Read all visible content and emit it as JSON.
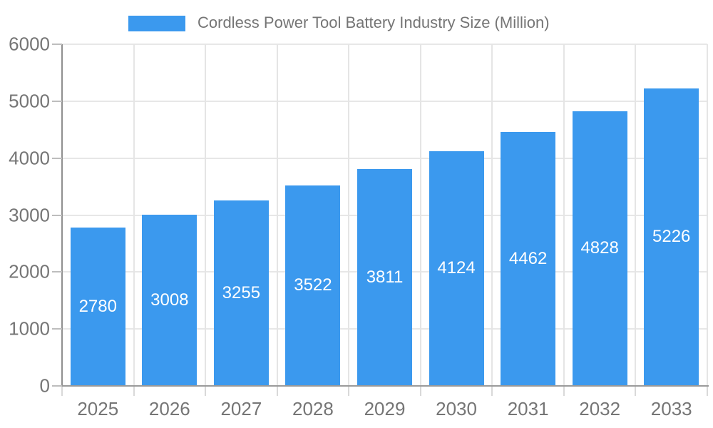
{
  "legend": {
    "items": [
      {
        "label": "Cordless Power Tool Battery Industry Size (Million)",
        "color": "#3B99EE"
      }
    ]
  },
  "chart_data": {
    "type": "bar",
    "title": "Cordless Power Tool Battery Industry Size (Million)",
    "categories": [
      "2025",
      "2026",
      "2027",
      "2028",
      "2029",
      "2030",
      "2031",
      "2032",
      "2033"
    ],
    "values": [
      2780,
      3008,
      3255,
      3522,
      3811,
      4124,
      4462,
      4828,
      5226
    ],
    "xlabel": "",
    "ylabel": "",
    "ylim": [
      0,
      6000
    ],
    "yticks": [
      0,
      1000,
      2000,
      3000,
      4000,
      5000,
      6000
    ],
    "grid": true,
    "legend_position": "top-center",
    "value_label_position": "inside-center",
    "bar_color": "#3B99EE",
    "bar_label_color": "#ffffff",
    "axis_text_color": "#757575",
    "gridline_color": "#e6e6e6"
  }
}
